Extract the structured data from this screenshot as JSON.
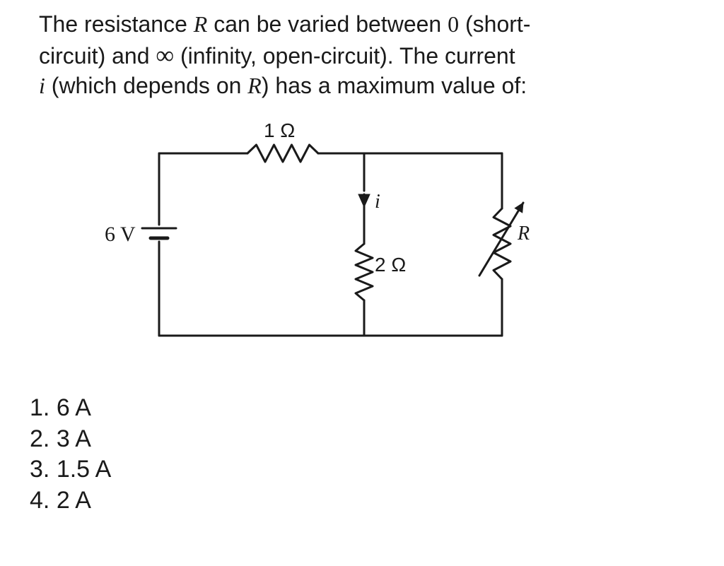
{
  "question": {
    "line1_pre": "The resistance ",
    "R": "R",
    "line1_post": " can be varied between ",
    "zero": "0",
    "line1_end": " (short-",
    "line2_pre": "circuit) and ",
    "inf": "∞",
    "line2_post": " (infinity, open-circuit). The current",
    "line3_i": "i",
    "line3_mid": " (which depends on ",
    "line3_R": "R",
    "line3_end": ") has a maximum value of:"
  },
  "circuit": {
    "stroke_color": "#1a1a1a",
    "stroke_width": 3,
    "r1_label": "1 Ω",
    "source_label": "6 V",
    "r_2ohm_label": "2 Ω",
    "i_label": "i",
    "R_label": "R"
  },
  "options": {
    "o1_num": "1. ",
    "o1_val": "6 A",
    "o2_num": "2. ",
    "o2_val": "3 A",
    "o3_num": "3. ",
    "o3_val": "1.5 A",
    "o4_num": "4. ",
    "o4_val": "2 A"
  }
}
